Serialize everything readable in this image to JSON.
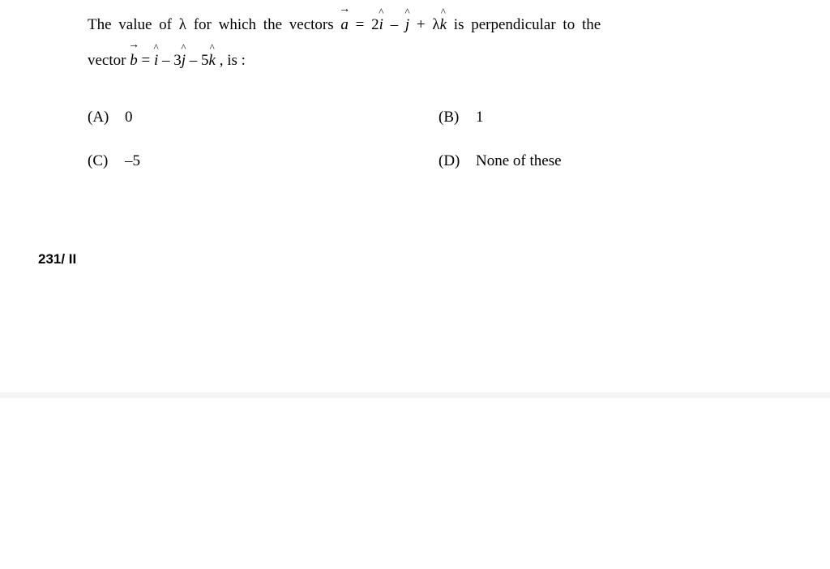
{
  "question": {
    "line1_part1": "The value of  λ  for which the vectors  ",
    "vector_a": "a",
    "eq1_prefix": " = 2",
    "i_hat": "i",
    "minus1": " – ",
    "j_hat": "j",
    "plus_lambda": " + λ",
    "k_hat": "k",
    "line1_part2": "  is  perpendicular  to  the",
    "line2_prefix": "vector  ",
    "vector_b": "b",
    "eq2_prefix": " = ",
    "i_hat2": "i",
    "minus2": " – 3",
    "j_hat2": "j",
    "minus3": " – 5",
    "k_hat2": "k",
    "line2_suffix": ", is :"
  },
  "options": {
    "a": {
      "label": "(A)",
      "value": "0"
    },
    "b": {
      "label": "(B)",
      "value": "1"
    },
    "c": {
      "label": "(C)",
      "value": "–5"
    },
    "d": {
      "label": "(D)",
      "value": "None of these"
    }
  },
  "footer": "231/ II",
  "style": {
    "background_color": "#ffffff",
    "text_color": "#000000",
    "band_color": "#f5f5f5",
    "body_font_size": 19,
    "footer_font_size": 17
  }
}
